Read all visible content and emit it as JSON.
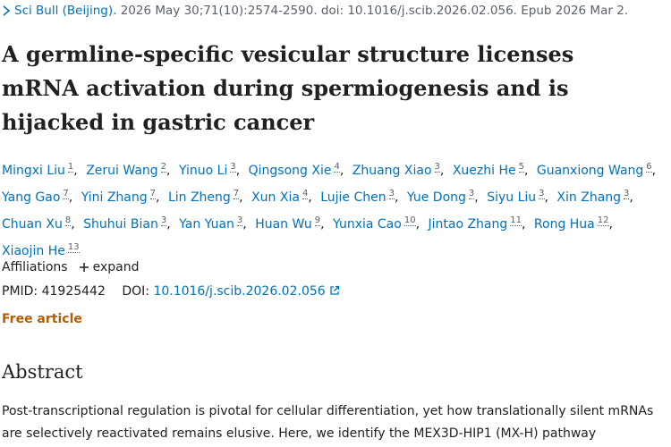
{
  "citation": {
    "journal": "Sci Bull (Beijing).",
    "details": "2026 May 30;71(10):2574-2590. doi: 10.1016/j.scib.2026.02.056. Epub 2026 Mar 2."
  },
  "title": "A germline-specific vesicular structure licenses mRNA activation during spermiogenesis and is hijacked in gastric cancer",
  "author_separator": ",",
  "authors": [
    {
      "name": "Mingxi Liu",
      "aff": "1"
    },
    {
      "name": "Zerui Wang",
      "aff": "2"
    },
    {
      "name": "Yinuo Li",
      "aff": "3"
    },
    {
      "name": "Qingsong Xie",
      "aff": "4"
    },
    {
      "name": "Zhuang Xiao",
      "aff": "3"
    },
    {
      "name": "Xuezhi He",
      "aff": "5"
    },
    {
      "name": "Guanxiong Wang",
      "aff": "6"
    },
    {
      "name": "Yang Gao",
      "aff": "7"
    },
    {
      "name": "Yini Zhang",
      "aff": "7"
    },
    {
      "name": "Lin Zheng",
      "aff": "7"
    },
    {
      "name": "Xun Xia",
      "aff": "4"
    },
    {
      "name": "Lujie Chen",
      "aff": "3"
    },
    {
      "name": "Yue Dong",
      "aff": "3"
    },
    {
      "name": "Siyu Liu",
      "aff": "3"
    },
    {
      "name": "Xin Zhang",
      "aff": "3"
    },
    {
      "name": "Chuan Xu",
      "aff": "8"
    },
    {
      "name": "Shuhui Bian",
      "aff": "3"
    },
    {
      "name": "Yan Yuan",
      "aff": "3"
    },
    {
      "name": "Huan Wu",
      "aff": "9"
    },
    {
      "name": "Yunxia Cao",
      "aff": "10"
    },
    {
      "name": "Jintao Zhang",
      "aff": "11"
    },
    {
      "name": "Rong Hua",
      "aff": "12"
    },
    {
      "name": "Xiaojin He",
      "aff": "13"
    }
  ],
  "affiliations": {
    "label": "Affiliations",
    "expand": "expand"
  },
  "ids": {
    "pmid_label": "PMID:",
    "pmid": "41925442",
    "doi_label": "DOI:",
    "doi": "10.1016/j.scib.2026.02.056"
  },
  "free_article": "Free article",
  "abstract": {
    "heading": "Abstract",
    "text": "Post-transcriptional regulation is pivotal for cellular differentiation, yet how translationally silent mRNAs are selectively reactivated remains elusive. Here, we identify the MEX3D-HIP1 (MX-H) pathway"
  }
}
